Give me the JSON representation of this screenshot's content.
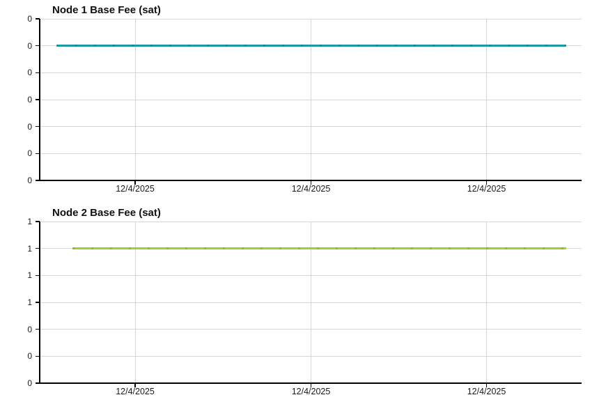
{
  "page": {
    "background_color": "#ffffff"
  },
  "colors": {
    "grid": "#d6d6d6",
    "axis": "#000000",
    "tick": "#000000",
    "text": "#1a1a1a",
    "title_text": "#111111"
  },
  "chart_data": [
    {
      "type": "line",
      "title": "Node 1 Base Fee (sat)",
      "xlabel": "",
      "ylabel": "",
      "x_tick_labels": [
        "12/4/2025",
        "12/4/2025",
        "12/4/2025"
      ],
      "y_tick_labels": [
        "0",
        "0",
        "0",
        "0",
        "0",
        "0",
        "0"
      ],
      "categories": [
        "12/4/2025",
        "12/4/2025",
        "12/4/2025"
      ],
      "series": [
        {
          "name": "Node 1 Base Fee (sat)",
          "values": [
            0,
            0,
            0
          ],
          "constant_value": 0,
          "color": "#1b9aa0"
        }
      ],
      "value_tick_index": 1,
      "grid": true,
      "legend_position": "none",
      "line_start_offset": 24,
      "line_end_offset": 756
    },
    {
      "type": "line",
      "title": "Node 2 Base Fee (sat)",
      "xlabel": "",
      "ylabel": "",
      "x_tick_labels": [
        "12/4/2025",
        "12/4/2025",
        "12/4/2025"
      ],
      "y_tick_labels": [
        "1",
        "1",
        "1",
        "1",
        "0",
        "0",
        "0"
      ],
      "categories": [
        "12/4/2025",
        "12/4/2025",
        "12/4/2025"
      ],
      "series": [
        {
          "name": "Node 2 Base Fee (sat)",
          "values": [
            1,
            1,
            1
          ],
          "constant_value": 1,
          "color": "#9cd033"
        }
      ],
      "value_tick_index": 1,
      "grid": true,
      "legend_position": "none",
      "line_start_offset": 47,
      "line_end_offset": 756
    }
  ]
}
